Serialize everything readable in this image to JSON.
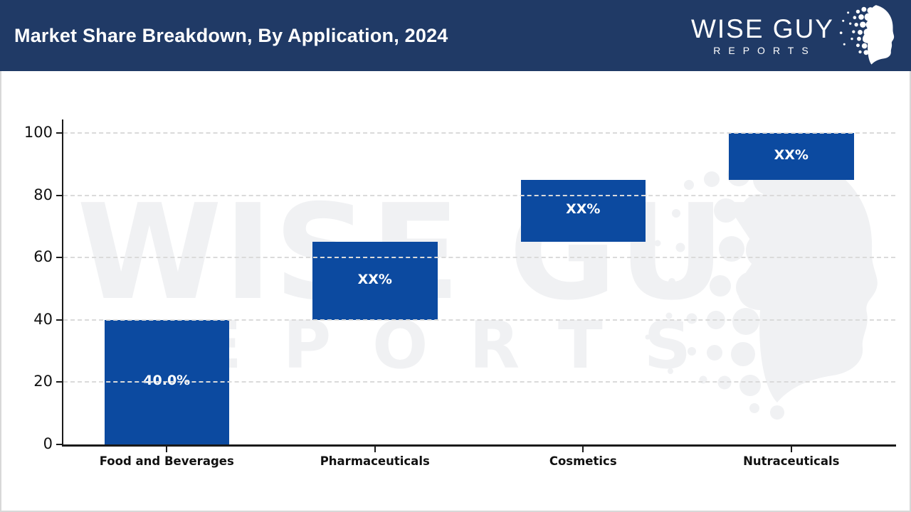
{
  "header": {
    "title": "Market Share Breakdown, By Application, 2024",
    "logo": {
      "line1": "WISE GUY",
      "line2": "REPORTS"
    }
  },
  "watermark": {
    "line1": "WISE GUY",
    "line2": "REPORTS"
  },
  "chart_data": {
    "type": "bar",
    "subtype": "floating-waterfall",
    "title": "Market Share Breakdown, By Application, 2024",
    "xlabel": "",
    "ylabel": "",
    "ylim": [
      0,
      100
    ],
    "yticks": [
      0,
      20,
      40,
      60,
      80,
      100
    ],
    "grid": "horizontal-dashed",
    "legend": "none",
    "categories": [
      "Food and Beverages",
      "Pharmaceuticals",
      "Cosmetics",
      "Nutraceuticals"
    ],
    "segments": [
      {
        "category": "Food and Beverages",
        "start": 0,
        "end": 40,
        "label": "40.0%"
      },
      {
        "category": "Pharmaceuticals",
        "start": 40,
        "end": 65,
        "label": "XX%"
      },
      {
        "category": "Cosmetics",
        "start": 65,
        "end": 85,
        "label": "XX%"
      },
      {
        "category": "Nutraceuticals",
        "start": 85,
        "end": 100,
        "label": "XX%"
      }
    ],
    "bar_color": "#0c4aa0",
    "bar_label_color": "#ffffff"
  },
  "colors": {
    "header_bg": "#203a66",
    "axis": "#1a1a1a",
    "gridline": "#dadada",
    "watermark": "#f0f1f3",
    "frame_border": "#d8d8d8"
  }
}
